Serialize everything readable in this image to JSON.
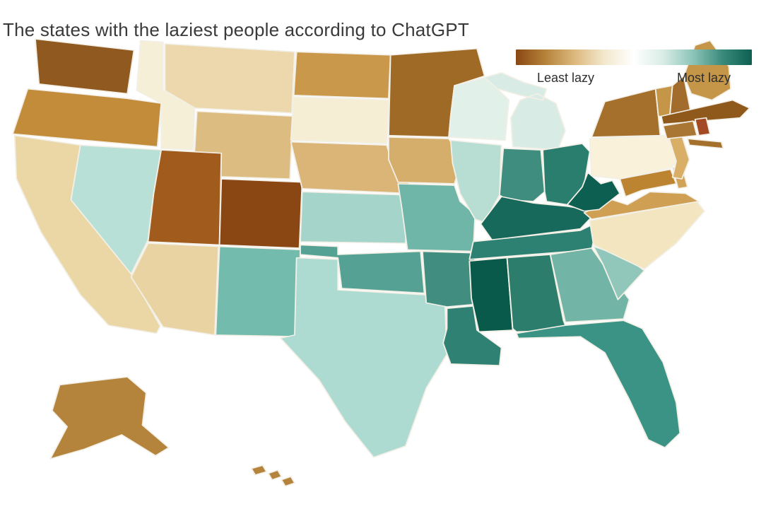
{
  "title": "The states with the laziest people according to ChatGPT",
  "legend": {
    "least_label": "Least lazy",
    "most_label": "Most lazy",
    "gradient_stops": [
      "#8a4713",
      "#b5833a",
      "#ddb97e",
      "#f3e8cd",
      "#ffffff",
      "#d8ece6",
      "#8cc5b8",
      "#3a8a7c",
      "#0d6051"
    ]
  },
  "chart_data": {
    "type": "choropleth",
    "title": "The states with the laziest people according to ChatGPT",
    "legend_left": "Least lazy",
    "legend_right": "Most lazy",
    "scale": "diverging color scale: dark brown = least lazy, white = middle, dark teal = most lazy",
    "states": [
      {
        "id": "WA",
        "name": "Washington",
        "fill": "#90591f"
      },
      {
        "id": "OR",
        "name": "Oregon",
        "fill": "#c28c3a"
      },
      {
        "id": "CA",
        "name": "California",
        "fill": "#ebd6a6"
      },
      {
        "id": "NV",
        "name": "Nevada",
        "fill": "#b9e0d7"
      },
      {
        "id": "ID",
        "name": "Idaho",
        "fill": "#f6efd8"
      },
      {
        "id": "MT",
        "name": "Montana",
        "fill": "#ecd8ac"
      },
      {
        "id": "WY",
        "name": "Wyoming",
        "fill": "#ddbc82"
      },
      {
        "id": "UT",
        "name": "Utah",
        "fill": "#a05b1d"
      },
      {
        "id": "CO",
        "name": "Colorado",
        "fill": "#8a4713"
      },
      {
        "id": "AZ",
        "name": "Arizona",
        "fill": "#e9d3a2"
      },
      {
        "id": "NM",
        "name": "New Mexico",
        "fill": "#72bbad"
      },
      {
        "id": "ND",
        "name": "North Dakota",
        "fill": "#c9984a"
      },
      {
        "id": "SD",
        "name": "South Dakota",
        "fill": "#f6eed4"
      },
      {
        "id": "NE",
        "name": "Nebraska",
        "fill": "#dab577"
      },
      {
        "id": "KS",
        "name": "Kansas",
        "fill": "#a5d4ca"
      },
      {
        "id": "OK",
        "name": "Oklahoma",
        "fill": "#55a294"
      },
      {
        "id": "TX",
        "name": "Texas",
        "fill": "#aedbd1"
      },
      {
        "id": "MN",
        "name": "Minnesota",
        "fill": "#9e6a26"
      },
      {
        "id": "IA",
        "name": "Iowa",
        "fill": "#d6ae6c"
      },
      {
        "id": "MO",
        "name": "Missouri",
        "fill": "#6fb5a8"
      },
      {
        "id": "AR",
        "name": "Arkansas",
        "fill": "#418e80"
      },
      {
        "id": "LA",
        "name": "Louisiana",
        "fill": "#2e8173"
      },
      {
        "id": "WI",
        "name": "Wisconsin",
        "fill": "#e2f0ea"
      },
      {
        "id": "IL",
        "name": "Illinois",
        "fill": "#b8ded4"
      },
      {
        "id": "MI",
        "name": "Michigan",
        "fill": "#d8ece5"
      },
      {
        "id": "IN",
        "name": "Indiana",
        "fill": "#3f8d7f"
      },
      {
        "id": "OH",
        "name": "Ohio",
        "fill": "#2a7e6e"
      },
      {
        "id": "KY",
        "name": "Kentucky",
        "fill": "#176a5b"
      },
      {
        "id": "TN",
        "name": "Tennessee",
        "fill": "#2d8172"
      },
      {
        "id": "MS",
        "name": "Mississippi",
        "fill": "#0a5a4c"
      },
      {
        "id": "AL",
        "name": "Alabama",
        "fill": "#2d7d6d"
      },
      {
        "id": "GA",
        "name": "Georgia",
        "fill": "#72b5a7"
      },
      {
        "id": "FL",
        "name": "Florida",
        "fill": "#3a9384"
      },
      {
        "id": "SC",
        "name": "South Carolina",
        "fill": "#90c7ba"
      },
      {
        "id": "NC",
        "name": "North Carolina",
        "fill": "#f2e5c0"
      },
      {
        "id": "VA",
        "name": "Virginia",
        "fill": "#cfa054"
      },
      {
        "id": "WV",
        "name": "West Virginia",
        "fill": "#0d6051"
      },
      {
        "id": "MD",
        "name": "Maryland",
        "fill": "#bc8331"
      },
      {
        "id": "DE",
        "name": "Delaware",
        "fill": "#d2a258"
      },
      {
        "id": "PA",
        "name": "Pennsylvania",
        "fill": "#f9f1da"
      },
      {
        "id": "NJ",
        "name": "New Jersey",
        "fill": "#d9ae66"
      },
      {
        "id": "NY",
        "name": "New York",
        "fill": "#a56f2c"
      },
      {
        "id": "VT",
        "name": "Vermont",
        "fill": "#c59548"
      },
      {
        "id": "NH",
        "name": "New Hampshire",
        "fill": "#a26c2c"
      },
      {
        "id": "MA",
        "name": "Massachusetts",
        "fill": "#90591c"
      },
      {
        "id": "CT",
        "name": "Connecticut",
        "fill": "#aa7634"
      },
      {
        "id": "RI",
        "name": "Rhode Island",
        "fill": "#a34a24"
      },
      {
        "id": "ME",
        "name": "Maine",
        "fill": "#c59548"
      },
      {
        "id": "AK",
        "name": "Alaska",
        "fill": "#b5843c"
      },
      {
        "id": "HI",
        "name": "Hawaii",
        "fill": "#b5843c"
      }
    ]
  }
}
